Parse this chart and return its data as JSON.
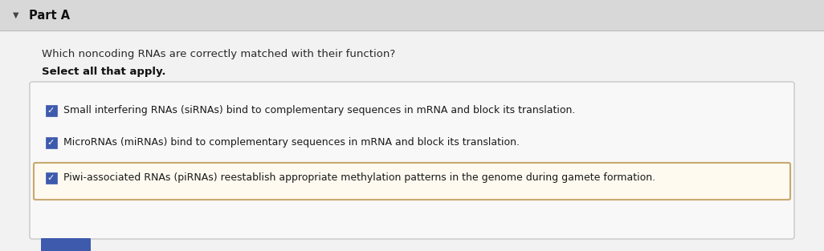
{
  "bg_color": "#e4e4e4",
  "header_bg": "#d8d8d8",
  "content_bg": "#f2f2f2",
  "part_label": "Part A",
  "arrow": "▼",
  "question": "Which noncoding RNAs are correctly matched with their function?",
  "instruction": "Select all that apply.",
  "options": [
    "Small interfering RNAs (siRNAs) bind to complementary sequences in mRNA and block its translation.",
    "MicroRNAs (miRNAs) bind to complementary sequences in mRNA and block its translation.",
    "Piwi-associated RNAs (piRNAs) reestablish appropriate methylation patterns in the genome during gamete formation."
  ],
  "checked": [
    true,
    true,
    true
  ],
  "highlighted": [
    false,
    false,
    true
  ],
  "checkbox_color": "#3d5aad",
  "highlight_border": "#c8a96e",
  "highlight_fill": "#fffaf0",
  "outer_box_border": "#c8c8c8",
  "outer_box_fill": "#f8f8f8",
  "fig_width": 10.26,
  "fig_height": 3.13,
  "dpi": 100
}
